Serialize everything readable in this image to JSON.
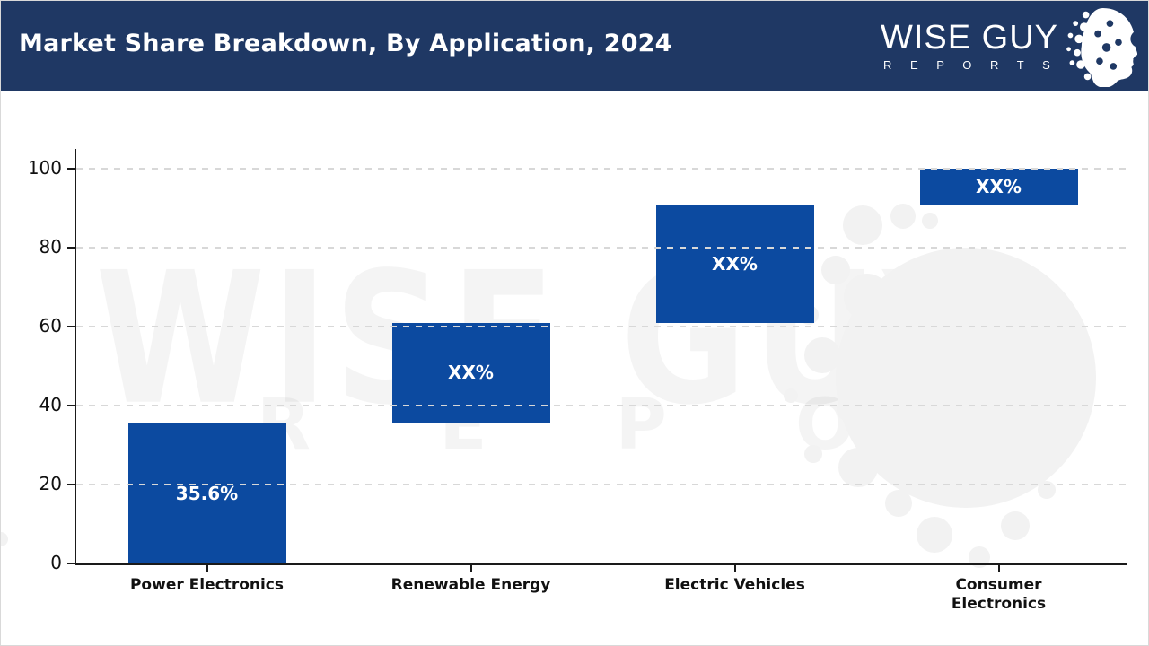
{
  "header": {
    "title": "Market Share Breakdown, By Application, 2024",
    "bg_color": "#1f3864",
    "logo": {
      "line1": "WISE GUY",
      "line2": "R E P O R T S"
    }
  },
  "watermark": {
    "line1": "WISE GUY",
    "line2": "R E P O R T S"
  },
  "chart_data": {
    "type": "bar",
    "subtype": "waterfall-floating-bars",
    "title": "Market Share Breakdown, By Application, 2024",
    "xlabel": "",
    "ylabel": "",
    "ylim": [
      0,
      105
    ],
    "y_ticks": [
      0,
      20,
      40,
      60,
      80,
      100
    ],
    "grid": "horizontal-dashed",
    "legend": "none",
    "bar_color": "#0c4aa0",
    "categories": [
      "Power Electronics",
      "Renewable Energy",
      "Electric Vehicles",
      "Consumer Electronics"
    ],
    "segments": [
      {
        "category": "Power Electronics",
        "start": 0,
        "end": 35.6,
        "value": 35.6,
        "label": "35.6%",
        "tick_lines": [
          "Power Electronics"
        ]
      },
      {
        "category": "Renewable Energy",
        "start": 35.6,
        "end": 61.0,
        "value": 25.4,
        "label": "XX%",
        "tick_lines": [
          "Renewable Energy"
        ]
      },
      {
        "category": "Electric Vehicles",
        "start": 61.0,
        "end": 90.9,
        "value": 29.9,
        "label": "XX%",
        "tick_lines": [
          "Electric Vehicles"
        ]
      },
      {
        "category": "Consumer Electronics",
        "start": 90.9,
        "end": 100.0,
        "value": 9.1,
        "label": "XX%",
        "tick_lines": [
          "Consumer",
          "Electronics"
        ]
      }
    ]
  }
}
